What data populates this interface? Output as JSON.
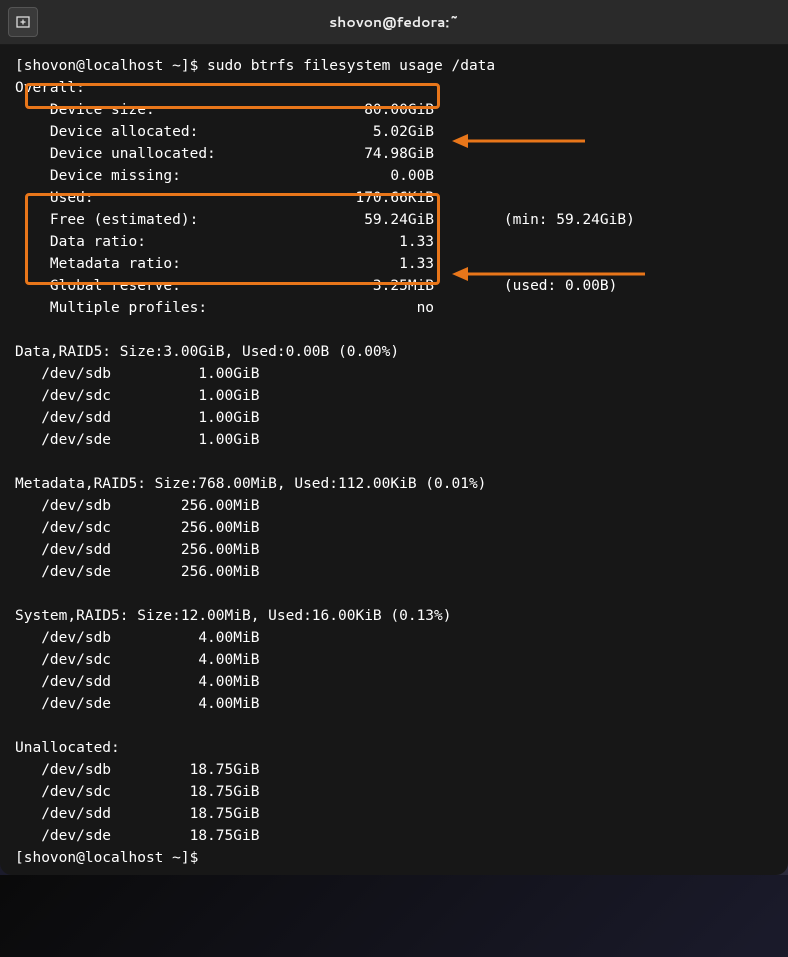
{
  "window": {
    "title": "shovon@fedora:~"
  },
  "colors": {
    "highlight_border": "#e8761a",
    "terminal_bg": "#171717",
    "titlebar_bg": "#2a2a2a",
    "text": "#ffffff"
  },
  "output": {
    "prompt1": "[shovon@localhost ~]$ sudo btrfs filesystem usage /data",
    "overall_header": "Overall:",
    "overall_rows": [
      {
        "label": "Device size:",
        "value": "80.00GiB",
        "extra": ""
      },
      {
        "label": "Device allocated:",
        "value": "5.02GiB",
        "extra": ""
      },
      {
        "label": "Device unallocated:",
        "value": "74.98GiB",
        "extra": ""
      },
      {
        "label": "Device missing:",
        "value": "0.00B",
        "extra": ""
      },
      {
        "label": "Used:",
        "value": "170.66KiB",
        "extra": ""
      },
      {
        "label": "Free (estimated):",
        "value": "59.24GiB",
        "extra": "(min: 59.24GiB)"
      },
      {
        "label": "Data ratio:",
        "value": "1.33",
        "extra": ""
      },
      {
        "label": "Metadata ratio:",
        "value": "1.33",
        "extra": ""
      },
      {
        "label": "Global reserve:",
        "value": "3.25MiB",
        "extra": "(used: 0.00B)"
      },
      {
        "label": "Multiple profiles:",
        "value": "no",
        "extra": ""
      }
    ],
    "sections": [
      {
        "header": "Data,RAID5: Size:3.00GiB, Used:0.00B (0.00%)",
        "devs": [
          {
            "dev": "/dev/sdb",
            "size": "1.00GiB"
          },
          {
            "dev": "/dev/sdc",
            "size": "1.00GiB"
          },
          {
            "dev": "/dev/sdd",
            "size": "1.00GiB"
          },
          {
            "dev": "/dev/sde",
            "size": "1.00GiB"
          }
        ]
      },
      {
        "header": "Metadata,RAID5: Size:768.00MiB, Used:112.00KiB (0.01%)",
        "devs": [
          {
            "dev": "/dev/sdb",
            "size": "256.00MiB"
          },
          {
            "dev": "/dev/sdc",
            "size": "256.00MiB"
          },
          {
            "dev": "/dev/sdd",
            "size": "256.00MiB"
          },
          {
            "dev": "/dev/sde",
            "size": "256.00MiB"
          }
        ]
      },
      {
        "header": "System,RAID5: Size:12.00MiB, Used:16.00KiB (0.13%)",
        "devs": [
          {
            "dev": "/dev/sdb",
            "size": "4.00MiB"
          },
          {
            "dev": "/dev/sdc",
            "size": "4.00MiB"
          },
          {
            "dev": "/dev/sdd",
            "size": "4.00MiB"
          },
          {
            "dev": "/dev/sde",
            "size": "4.00MiB"
          }
        ]
      },
      {
        "header": "Unallocated:",
        "devs": [
          {
            "dev": "/dev/sdb",
            "size": "18.75GiB"
          },
          {
            "dev": "/dev/sdc",
            "size": "18.75GiB"
          },
          {
            "dev": "/dev/sdd",
            "size": "18.75GiB"
          },
          {
            "dev": "/dev/sde",
            "size": "18.75GiB"
          }
        ]
      }
    ],
    "prompt2": "[shovon@localhost ~]$ "
  },
  "layout": {
    "label_width": 22,
    "value_width": 22,
    "dev_label_indent": 3,
    "dev_label_width": 13,
    "dev_value_width": 12
  }
}
